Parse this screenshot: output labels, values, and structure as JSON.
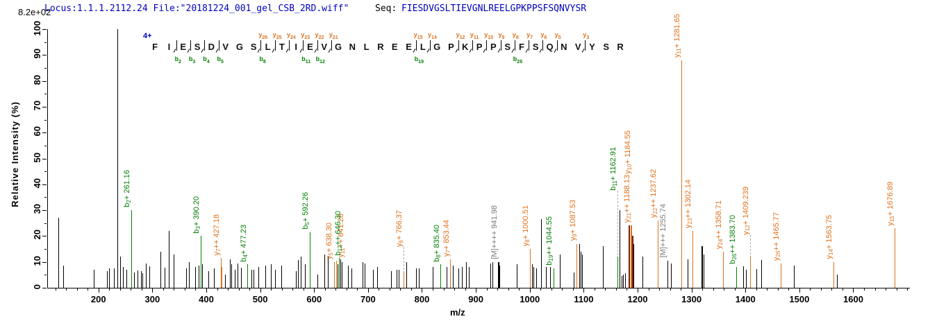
{
  "header": {
    "locus_file": "Locus:1.1.1.2112.24 File:\"20181224_001_gel_CSB_2RD.wiff\"",
    "seq_label": "Seq:",
    "sequence": "FIESDVGSLTIEVGNLREELGPKPPSFSQNVYSR",
    "max_intensity": "8.2e+02",
    "precursor_charge": "4+"
  },
  "axes": {
    "x_label": "m/z",
    "y_label": "Relative  Intensity (%)"
  },
  "colors": {
    "b_ion": "#068006",
    "y_ion": "#DF711B",
    "m_ion_label": "#7A7A7A",
    "peak_black": "#000000",
    "peak_dark_overlap": "#7A1F04",
    "header_blue": "#0000BE",
    "leader_gray": "#aaaaaa"
  },
  "peptide_annotation": {
    "charge_label": "4+",
    "residues": [
      {
        "ch": "F"
      },
      {
        "ch": "I"
      },
      {
        "ch": "E",
        "b": 2
      },
      {
        "ch": "S",
        "b": 3
      },
      {
        "ch": "D",
        "b": 4
      },
      {
        "ch": "V",
        "b": 5
      },
      {
        "ch": "G"
      },
      {
        "ch": "S"
      },
      {
        "ch": "L",
        "y": 26,
        "b": 8
      },
      {
        "ch": "T",
        "y": 25
      },
      {
        "ch": "I",
        "y": 24
      },
      {
        "ch": "E",
        "y": 23,
        "b": 11
      },
      {
        "ch": "V",
        "y": 22,
        "b": 12
      },
      {
        "ch": "G",
        "y": 21
      },
      {
        "ch": "N"
      },
      {
        "ch": "L"
      },
      {
        "ch": "R"
      },
      {
        "ch": "E"
      },
      {
        "ch": "E"
      },
      {
        "ch": "L",
        "y": 15,
        "b": 19
      },
      {
        "ch": "G",
        "y": 14
      },
      {
        "ch": "P"
      },
      {
        "ch": "K",
        "y": 12
      },
      {
        "ch": "P",
        "y": 11
      },
      {
        "ch": "P",
        "y": 10
      },
      {
        "ch": "S",
        "y": 9
      },
      {
        "ch": "F",
        "y": 8,
        "b": 26
      },
      {
        "ch": "S",
        "y": 7
      },
      {
        "ch": "Q",
        "y": 6
      },
      {
        "ch": "N",
        "y": 5
      },
      {
        "ch": "V"
      },
      {
        "ch": "Y",
        "y": 3
      },
      {
        "ch": "S"
      },
      {
        "ch": "R"
      }
    ]
  },
  "chart_data": {
    "type": "bar",
    "subtype": "ms2-spectrum-stick-plot",
    "title": "8.2e+02",
    "xlabel": "m/z",
    "ylabel": "Relative  Intensity (%)",
    "xlim": [
      105,
      1705
    ],
    "ylim": [
      0,
      100
    ],
    "x_major_ticks": [
      200,
      300,
      400,
      500,
      600,
      700,
      800,
      900,
      1000,
      1100,
      1200,
      1300,
      1400,
      1500,
      1600
    ],
    "x_minor_step": 20,
    "y_major_step": 10,
    "y_minor_step": 5,
    "grid": false,
    "peaks": [
      {
        "mz": 126,
        "i": 27
      },
      {
        "mz": 135,
        "i": 8.5
      },
      {
        "mz": 192,
        "i": 7
      },
      {
        "mz": 216,
        "i": 6.5
      },
      {
        "mz": 220,
        "i": 7.5
      },
      {
        "mz": 229,
        "i": 7.5
      },
      {
        "mz": 235.4,
        "i": 100
      },
      {
        "mz": 241.5,
        "i": 12
      },
      {
        "mz": 245.5,
        "i": 8
      },
      {
        "mz": 252,
        "i": 7
      },
      {
        "mz": 261.16,
        "i": 30,
        "label": "b2+ 261.16",
        "t": "b"
      },
      {
        "mz": 267,
        "i": 6
      },
      {
        "mz": 273,
        "i": 6.7
      },
      {
        "mz": 279,
        "i": 6.5
      },
      {
        "mz": 281.5,
        "i": 5.7
      },
      {
        "mz": 289,
        "i": 9.4
      },
      {
        "mz": 295,
        "i": 8.3
      },
      {
        "mz": 315,
        "i": 14
      },
      {
        "mz": 324,
        "i": 7.8
      },
      {
        "mz": 331,
        "i": 22
      },
      {
        "mz": 340,
        "i": 13
      },
      {
        "mz": 363,
        "i": 7.4
      },
      {
        "mz": 369,
        "i": 10
      },
      {
        "mz": 380,
        "i": 8
      },
      {
        "mz": 386,
        "i": 8.5
      },
      {
        "mz": 390.2,
        "i": 20,
        "label": "b3+ 390.20",
        "t": "b"
      },
      {
        "mz": 392.5,
        "i": 9
      },
      {
        "mz": 405,
        "i": 6.5
      },
      {
        "mz": 415,
        "i": 7.4
      },
      {
        "mz": 427.18,
        "i": 11.5,
        "label": "y7++ 427.18",
        "t": "y"
      },
      {
        "mz": 429.2,
        "i": 8,
        "c": "or"
      },
      {
        "mz": 436,
        "i": 5
      },
      {
        "mz": 445,
        "i": 11
      },
      {
        "mz": 447,
        "i": 9
      },
      {
        "mz": 453,
        "i": 7
      },
      {
        "mz": 458,
        "i": 9.4
      },
      {
        "mz": 465,
        "i": 7.8
      },
      {
        "mz": 477.23,
        "i": 9,
        "label": "b4+ 477.23",
        "t": "b"
      },
      {
        "mz": 485,
        "i": 7
      },
      {
        "mz": 488,
        "i": 7
      },
      {
        "mz": 497,
        "i": 8
      },
      {
        "mz": 510,
        "i": 8.5
      },
      {
        "mz": 520,
        "i": 9
      },
      {
        "mz": 528,
        "i": 7
      },
      {
        "mz": 540,
        "i": 8.5
      },
      {
        "mz": 567,
        "i": 6.5
      },
      {
        "mz": 571,
        "i": 10.7
      },
      {
        "mz": 576,
        "i": 12
      },
      {
        "mz": 583,
        "i": 9
      },
      {
        "mz": 592.26,
        "i": 21.5,
        "label": "b5+ 592.26",
        "t": "b"
      },
      {
        "mz": 607,
        "i": 5
      },
      {
        "mz": 620,
        "i": 13
      },
      {
        "mz": 626,
        "i": 12
      },
      {
        "mz": 638.3,
        "i": 10,
        "label": "y5+ 638.30",
        "t": "y",
        "lx": -2
      },
      {
        "mz": 641.28,
        "i": 10.5,
        "label": "y11++ 641.28",
        "t": "y",
        "lx": 13
      },
      {
        "mz": 643.5,
        "i": 9
      },
      {
        "mz": 646.3,
        "i": 11.5,
        "label": "b12++ 646.30",
        "t": "b",
        "lx": 5
      },
      {
        "mz": 649,
        "i": 11
      },
      {
        "mz": 652.5,
        "i": 10
      },
      {
        "mz": 663,
        "i": 8.5
      },
      {
        "mz": 670,
        "i": 7.5
      },
      {
        "mz": 690,
        "i": 10
      },
      {
        "mz": 694,
        "i": 9.5
      },
      {
        "mz": 710,
        "i": 7
      },
      {
        "mz": 718,
        "i": 8
      },
      {
        "mz": 743,
        "i": 6.5
      },
      {
        "mz": 753,
        "i": 7
      },
      {
        "mz": 757,
        "i": 7
      },
      {
        "mz": 766.37,
        "i": 6.5,
        "label": "y6+ 766.37",
        "t": "y",
        "gap": 35,
        "dash": true
      },
      {
        "mz": 772,
        "i": 10
      },
      {
        "mz": 790,
        "i": 7.5
      },
      {
        "mz": 795,
        "i": 7.5
      },
      {
        "mz": 820,
        "i": 8
      },
      {
        "mz": 835.4,
        "i": 9,
        "label": "b8+ 835.40",
        "t": "b"
      },
      {
        "mz": 846,
        "i": 8
      },
      {
        "mz": 853.44,
        "i": 11,
        "label": "y7+ 853.44",
        "t": "y"
      },
      {
        "mz": 858,
        "i": 8.7
      },
      {
        "mz": 868,
        "i": 7.5
      },
      {
        "mz": 875,
        "i": 8
      },
      {
        "mz": 882,
        "i": 10
      },
      {
        "mz": 887,
        "i": 8
      },
      {
        "mz": 928,
        "i": 9.5
      },
      {
        "mz": 931,
        "i": 10
      },
      {
        "mz": 941.98,
        "i": 10,
        "label": "[M]++++ 941.98",
        "t": "M",
        "w": 2
      },
      {
        "mz": 944.5,
        "i": 8.5
      },
      {
        "mz": 977,
        "i": 9
      },
      {
        "mz": 1000.51,
        "i": 15,
        "label": "y8+ 1000.51",
        "t": "y"
      },
      {
        "mz": 1005,
        "i": 9
      },
      {
        "mz": 1008,
        "i": 8
      },
      {
        "mz": 1012,
        "i": 7.5
      },
      {
        "mz": 1021,
        "i": 26.5
      },
      {
        "mz": 1030,
        "i": 8
      },
      {
        "mz": 1038,
        "i": 8
      },
      {
        "mz": 1044.55,
        "i": 7.5,
        "label": "b19++ 1044.55",
        "t": "b"
      },
      {
        "mz": 1056,
        "i": 13
      },
      {
        "mz": 1082,
        "i": 6
      },
      {
        "mz": 1087.53,
        "i": 17,
        "label": "y9+ 1087.53",
        "t": "y"
      },
      {
        "mz": 1092,
        "i": 17
      },
      {
        "mz": 1095,
        "i": 14
      },
      {
        "mz": 1098,
        "i": 13
      },
      {
        "mz": 1136,
        "i": 16
      },
      {
        "mz": 1162.91,
        "i": 12,
        "label": "b11+ 1162.91",
        "t": "b",
        "gap": 95,
        "dash": true
      },
      {
        "mz": 1167,
        "i": 30
      },
      {
        "mz": 1171,
        "i": 4.5
      },
      {
        "mz": 1174,
        "i": 5
      },
      {
        "mz": 1178,
        "i": 5.5
      },
      {
        "mz": 1184.55,
        "i": 24,
        "label": "y10+ 1184.55",
        "t": "y",
        "c": "dk",
        "w": 2,
        "gap": 75,
        "lx": 4
      },
      {
        "mz": 1188.13,
        "i": 24,
        "label": "y21++ 1188.13",
        "t": "y",
        "w": 2
      },
      {
        "mz": 1190.5,
        "i": 20,
        "c": "dk",
        "w": 2
      },
      {
        "mz": 1193.5,
        "i": 17
      },
      {
        "mz": 1210,
        "i": 12
      },
      {
        "mz": 1237.62,
        "i": 26,
        "label": "y22++ 1237.62",
        "t": "y"
      },
      {
        "mz": 1255.74,
        "i": 10.5,
        "label": "[M]+++ 1255.74",
        "t": "M"
      },
      {
        "mz": 1262,
        "i": 9.5
      },
      {
        "mz": 1281.65,
        "i": 88,
        "label": "y11+ 1281.65",
        "t": "y"
      },
      {
        "mz": 1293,
        "i": 11
      },
      {
        "mz": 1302.14,
        "i": 22,
        "label": "y23++ 1302.14",
        "t": "y"
      },
      {
        "mz": 1320,
        "i": 16,
        "w": 2
      },
      {
        "mz": 1323,
        "i": 13
      },
      {
        "mz": 1358.71,
        "i": 14,
        "label": "y24++ 1358.71",
        "t": "y"
      },
      {
        "mz": 1383.7,
        "i": 8,
        "label": "b26++ 1383.70",
        "t": "b"
      },
      {
        "mz": 1396,
        "i": 8.4
      },
      {
        "mz": 1402,
        "i": 7
      },
      {
        "mz": 1409.239,
        "i": 12.3,
        "label": "y12+ 1409.239",
        "t": "y",
        "gap": 30,
        "dash": true
      },
      {
        "mz": 1421,
        "i": 7.2
      },
      {
        "mz": 1430,
        "i": 10.8
      },
      {
        "mz": 1465.77,
        "i": 9.5,
        "label": "y26++ 1465.77",
        "t": "y"
      },
      {
        "mz": 1490,
        "i": 8.5
      },
      {
        "mz": 1563.75,
        "i": 10,
        "label": "y14+ 1563.75",
        "t": "y"
      },
      {
        "mz": 1571,
        "i": 5
      },
      {
        "mz": 1676.89,
        "i": 23,
        "label": "y15+ 1676.89",
        "t": "y"
      }
    ]
  }
}
